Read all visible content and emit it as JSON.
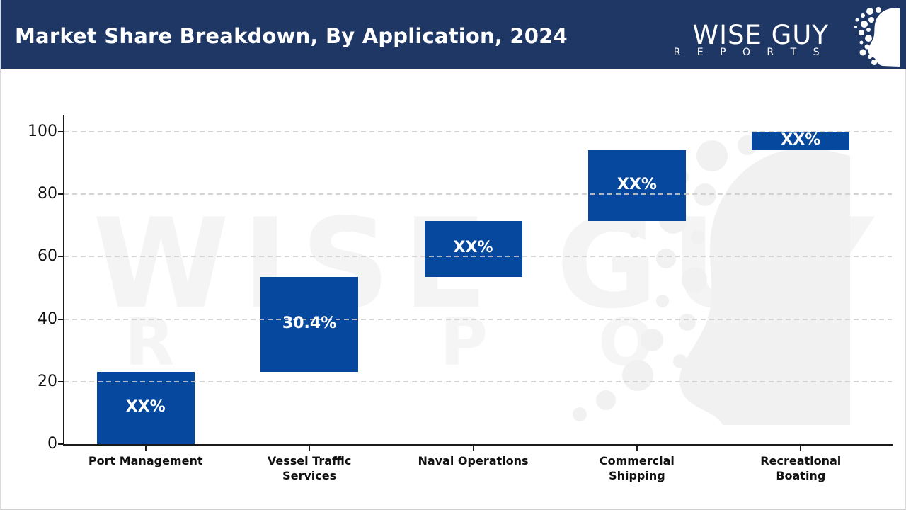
{
  "header": {
    "title": "Market Share Breakdown, By Application, 2024",
    "bg_color": "#1f3764",
    "logo": {
      "line1": "WISE GUY",
      "line2": "REPORTS",
      "line2_display": "R E P O R T S"
    }
  },
  "watermark": {
    "line1": "WISE GUY",
    "line2": "R E P O R T S"
  },
  "chart_data": {
    "type": "bar",
    "subtype": "waterfall",
    "title": "Market Share Breakdown, By Application, 2024",
    "xlabel": "",
    "ylabel": "",
    "ylim": [
      0,
      100
    ],
    "yticks": [
      0,
      20,
      40,
      60,
      80,
      100
    ],
    "grid": "horizontal-dashed",
    "legend": "none",
    "bar_color": "#05489e",
    "bar_label_color": "#ffffff",
    "categories": [
      "Port Management",
      "Vessel Traffic\nServices",
      "Naval Operations",
      "Commercial\nShipping",
      "Recreational\nBoating"
    ],
    "series": [
      {
        "name": "Market Share",
        "starts": [
          0,
          23.2,
          53.6,
          71.4,
          94.1
        ],
        "ends": [
          23.2,
          53.6,
          71.4,
          94.1,
          100
        ],
        "values": [
          23.2,
          30.4,
          17.8,
          22.7,
          5.9
        ],
        "labels": [
          "XX%",
          "30.4%",
          "XX%",
          "XX%",
          "XX%"
        ]
      }
    ]
  }
}
